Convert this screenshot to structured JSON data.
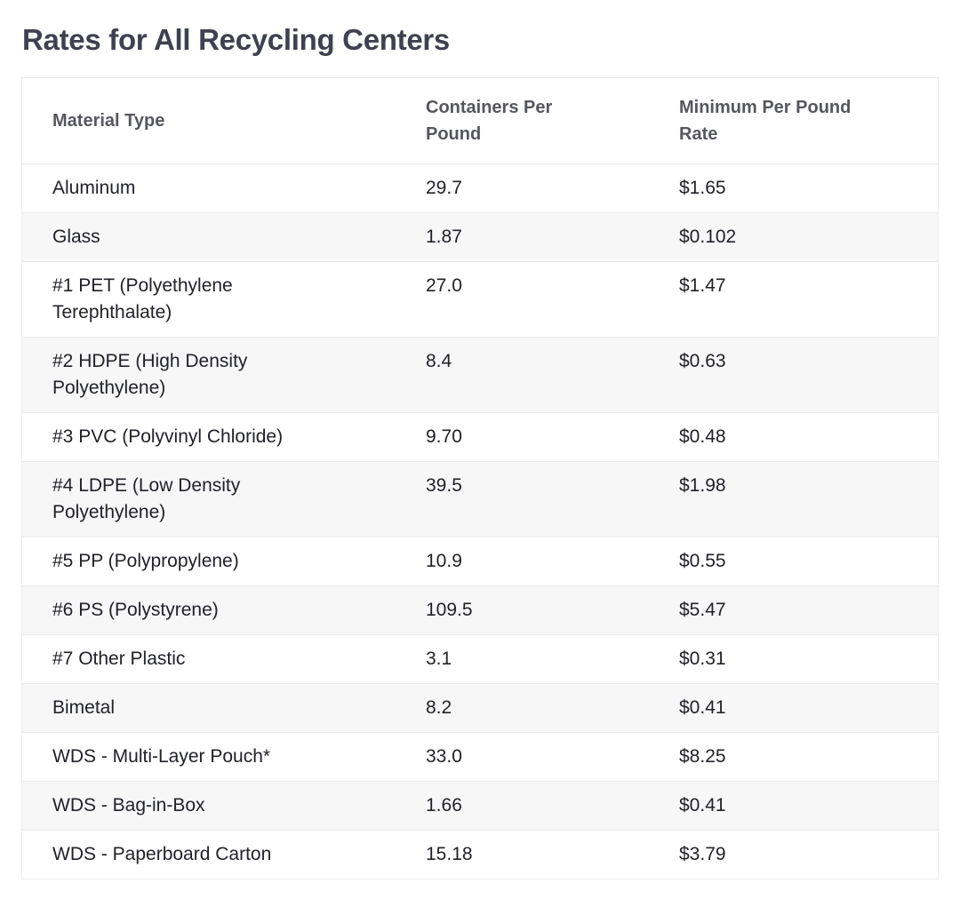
{
  "page": {
    "title": "Rates for All Recycling Centers"
  },
  "colors": {
    "title_text": "#3f4150",
    "header_text": "#56575d",
    "body_text": "#212227",
    "row_stripe": "#f7f7f8",
    "border": "#ebebed",
    "bottom_strip": "#f4f4f5"
  },
  "table": {
    "columns": [
      "Material Type",
      "Containers Per Pound",
      "Minimum Per Pound Rate"
    ],
    "rows": [
      {
        "material": "Aluminum",
        "containers_per_pound": "29.7",
        "min_per_pound_rate": "$1.65"
      },
      {
        "material": "Glass",
        "containers_per_pound": "1.87",
        "min_per_pound_rate": "$0.102"
      },
      {
        "material": "#1 PET (Polyethylene Terephthalate)",
        "containers_per_pound": "27.0",
        "min_per_pound_rate": "$1.47"
      },
      {
        "material": "#2 HDPE (High Density Polyethylene)",
        "containers_per_pound": "8.4",
        "min_per_pound_rate": "$0.63"
      },
      {
        "material": "#3 PVC (Polyvinyl Chloride)",
        "containers_per_pound": "9.70",
        "min_per_pound_rate": "$0.48"
      },
      {
        "material": "#4 LDPE (Low Density Polyethylene)",
        "containers_per_pound": "39.5",
        "min_per_pound_rate": "$1.98"
      },
      {
        "material": "#5 PP (Polypropylene)",
        "containers_per_pound": "10.9",
        "min_per_pound_rate": "$0.55"
      },
      {
        "material": "#6 PS (Polystyrene)",
        "containers_per_pound": "109.5",
        "min_per_pound_rate": "$5.47"
      },
      {
        "material": "#7 Other Plastic",
        "containers_per_pound": "3.1",
        "min_per_pound_rate": "$0.31"
      },
      {
        "material": "Bimetal",
        "containers_per_pound": "8.2",
        "min_per_pound_rate": "$0.41"
      },
      {
        "material": "WDS - Multi-Layer Pouch*",
        "containers_per_pound": "33.0",
        "min_per_pound_rate": "$8.25"
      },
      {
        "material": "WDS - Bag-in-Box",
        "containers_per_pound": "1.66",
        "min_per_pound_rate": "$0.41"
      },
      {
        "material": "WDS - Paperboard Carton",
        "containers_per_pound": "15.18",
        "min_per_pound_rate": "$3.79"
      }
    ]
  }
}
